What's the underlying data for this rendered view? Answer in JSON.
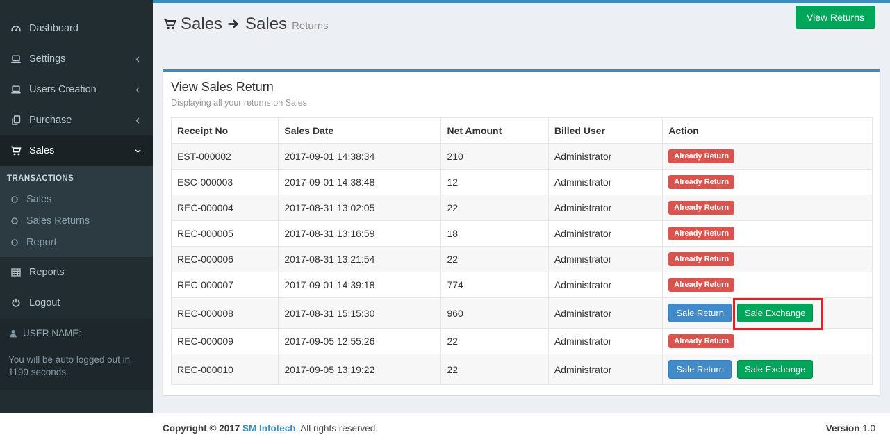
{
  "colors": {
    "accent": "#3c8dbc",
    "success": "#00a65a",
    "danger": "#d9534f",
    "primary": "#428bca",
    "highlight": "#ed1b24"
  },
  "sidebar": {
    "items": [
      {
        "label": "Dashboard",
        "icon": "dashboard-icon",
        "chevron": null,
        "active": false
      },
      {
        "label": "Settings",
        "icon": "laptop-icon",
        "chevron": "left",
        "active": false
      },
      {
        "label": "Users Creation",
        "icon": "laptop-icon",
        "chevron": "left",
        "active": false
      },
      {
        "label": "Purchase",
        "icon": "copy-icon",
        "chevron": "left",
        "active": false
      },
      {
        "label": "Sales",
        "icon": "cart-icon",
        "chevron": "down",
        "active": true
      }
    ],
    "section_header": "TRANSACTIONS",
    "submenu": [
      {
        "label": "Sales",
        "icon": "circle-icon"
      },
      {
        "label": "Sales Returns",
        "icon": "circle-icon"
      },
      {
        "label": "Report",
        "icon": "circle-icon"
      }
    ],
    "items_bottom": [
      {
        "label": "Reports",
        "icon": "table-icon"
      },
      {
        "label": "Logout",
        "icon": "power-icon"
      }
    ],
    "user_panel": {
      "label": "USER NAME:",
      "autologout_line1": "You will be auto logged out in",
      "autologout_line2": "1199 seconds."
    }
  },
  "header": {
    "breadcrumb_primary": "Sales",
    "breadcrumb_secondary": "Sales",
    "breadcrumb_sub": "Returns",
    "view_returns_button": "View Returns"
  },
  "panel": {
    "title": "View Sales Return",
    "subtitle": "Displaying all your returns on Sales"
  },
  "table": {
    "columns": [
      "Receipt No",
      "Sales Date",
      "Net Amount",
      "Billed User",
      "Action"
    ],
    "rows": [
      {
        "receipt": "EST-000002",
        "date": "2017-09-01 14:38:34",
        "amount": "210",
        "user": "Administrator",
        "actions": [
          {
            "label": "Already Return",
            "type": "danger",
            "highlighted": false
          }
        ]
      },
      {
        "receipt": "ESC-000003",
        "date": "2017-09-01 14:38:48",
        "amount": "12",
        "user": "Administrator",
        "actions": [
          {
            "label": "Already Return",
            "type": "danger",
            "highlighted": false
          }
        ]
      },
      {
        "receipt": "REC-000004",
        "date": "2017-08-31 13:02:05",
        "amount": "22",
        "user": "Administrator",
        "actions": [
          {
            "label": "Already Return",
            "type": "danger",
            "highlighted": false
          }
        ]
      },
      {
        "receipt": "REC-000005",
        "date": "2017-08-31 13:16:59",
        "amount": "18",
        "user": "Administrator",
        "actions": [
          {
            "label": "Already Return",
            "type": "danger",
            "highlighted": false
          }
        ]
      },
      {
        "receipt": "REC-000006",
        "date": "2017-08-31 13:21:54",
        "amount": "22",
        "user": "Administrator",
        "actions": [
          {
            "label": "Already Return",
            "type": "danger",
            "highlighted": false
          }
        ]
      },
      {
        "receipt": "REC-000007",
        "date": "2017-09-01 14:39:18",
        "amount": "774",
        "user": "Administrator",
        "actions": [
          {
            "label": "Already Return",
            "type": "danger",
            "highlighted": false
          }
        ]
      },
      {
        "receipt": "REC-000008",
        "date": "2017-08-31 15:15:30",
        "amount": "960",
        "user": "Administrator",
        "actions": [
          {
            "label": "Sale Return",
            "type": "primary",
            "highlighted": false
          },
          {
            "label": "Sale Exchange",
            "type": "success",
            "highlighted": true
          }
        ]
      },
      {
        "receipt": "REC-000009",
        "date": "2017-09-05 12:55:26",
        "amount": "22",
        "user": "Administrator",
        "actions": [
          {
            "label": "Already Return",
            "type": "danger",
            "highlighted": false
          }
        ]
      },
      {
        "receipt": "REC-000010",
        "date": "2017-09-05 13:19:22",
        "amount": "22",
        "user": "Administrator",
        "actions": [
          {
            "label": "Sale Return",
            "type": "primary",
            "highlighted": false
          },
          {
            "label": "Sale Exchange",
            "type": "success",
            "highlighted": false
          }
        ]
      }
    ]
  },
  "footer": {
    "copyright_prefix": "Copyright © 2017 ",
    "company": "SM Infotech",
    "copyright_suffix": ". All rights reserved.",
    "version_label": "Version ",
    "version_value": "1.0"
  }
}
